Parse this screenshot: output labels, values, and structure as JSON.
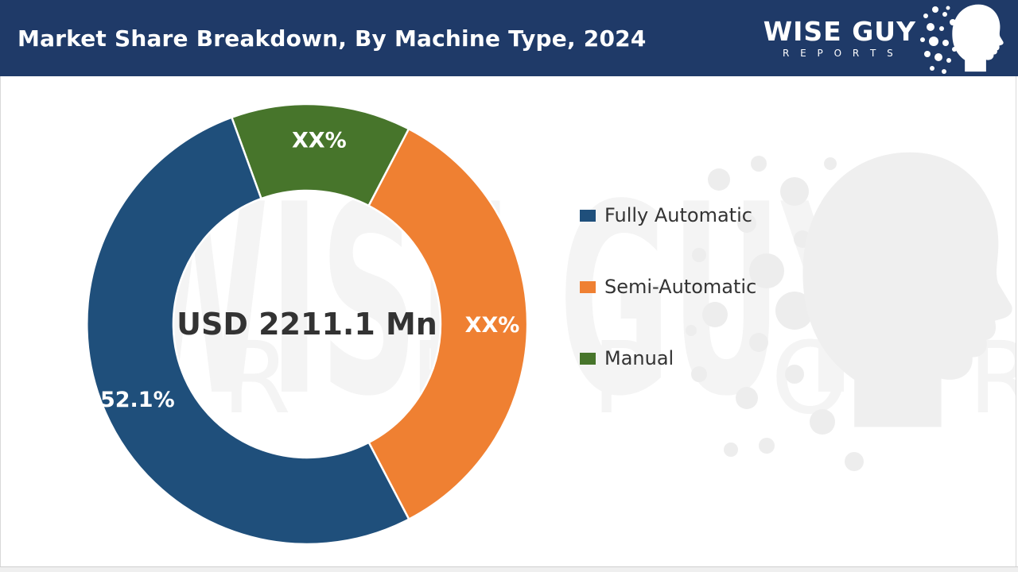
{
  "header": {
    "title": "Market Share Breakdown, By Machine Type, 2024",
    "logo": {
      "name_line": "WISE GUY",
      "sub_line": "R E P O R T S"
    }
  },
  "watermark": {
    "line1": "WISE GUY",
    "line2": "R E P O R T S"
  },
  "legend": {
    "items": [
      {
        "label": "Fully Automatic",
        "color": "#1f4f7b"
      },
      {
        "label": "Semi-Automatic",
        "color": "#ef8032"
      },
      {
        "label": "Manual",
        "color": "#47752b"
      }
    ]
  },
  "chart_data": {
    "type": "pie",
    "subtype": "donut",
    "title": "Market Share Breakdown, By Machine Type, 2024",
    "categories": [
      "Fully Automatic",
      "Semi-Automatic",
      "Manual"
    ],
    "values": [
      52.1,
      34.7,
      13.2
    ],
    "display_labels": [
      "52.1%",
      "XX%",
      "XX%"
    ],
    "colors": [
      "#1f4f7b",
      "#ef8032",
      "#47752b"
    ],
    "center_text": "USD 2211.1 Mn",
    "legend_position": "right",
    "direction": "clockwise",
    "start_angle_from_top_deg": -20,
    "slices_clockwise": [
      {
        "name": "Manual",
        "value": 13.2,
        "display_label": "XX%",
        "color": "#47752b"
      },
      {
        "name": "Semi-Automatic",
        "value": 34.7,
        "display_label": "XX%",
        "color": "#ef8032"
      },
      {
        "name": "Fully Automatic",
        "value": 52.1,
        "display_label": "52.1%",
        "color": "#1f4f7b"
      }
    ]
  }
}
